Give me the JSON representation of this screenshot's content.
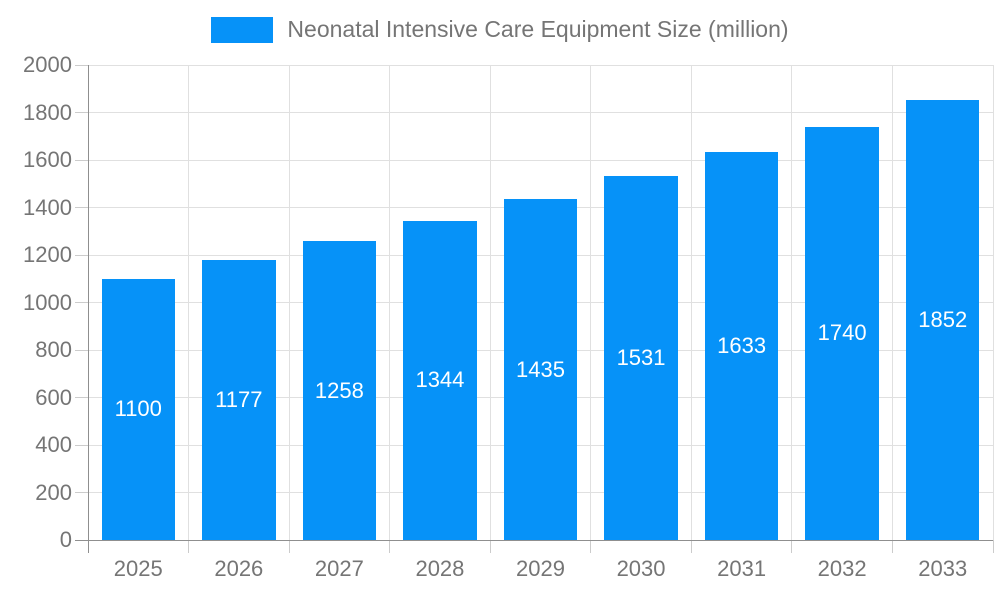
{
  "legend": {
    "label": "Neonatal Intensive Care Equipment Size (million)",
    "position": "top"
  },
  "chart_data": {
    "type": "bar",
    "title": "Neonatal Intensive Care Equipment Size (million)",
    "series_name": "Neonatal Intensive Care Equipment Size (million)",
    "categories": [
      "2025",
      "2026",
      "2027",
      "2028",
      "2029",
      "2030",
      "2031",
      "2032",
      "2033"
    ],
    "values": [
      1100,
      1177,
      1258,
      1344,
      1435,
      1531,
      1633,
      1740,
      1852
    ],
    "xlabel": "",
    "ylabel": "",
    "ylim": [
      0,
      2000
    ],
    "ytick_step": 200,
    "yticks": [
      "0",
      "200",
      "400",
      "600",
      "800",
      "1000",
      "1200",
      "1400",
      "1600",
      "1800",
      "2000"
    ],
    "grid": true,
    "legend_position": "top",
    "bar_labels_inside": true,
    "colors": {
      "bar": "#0692f8",
      "bar_label": "#ffffff",
      "axis_line": "#8f8f8f",
      "gridline": "#e0e0e0",
      "tick": "#cccccc",
      "axis_text": "#757575",
      "legend_text": "#757575",
      "background": "#ffffff"
    }
  }
}
